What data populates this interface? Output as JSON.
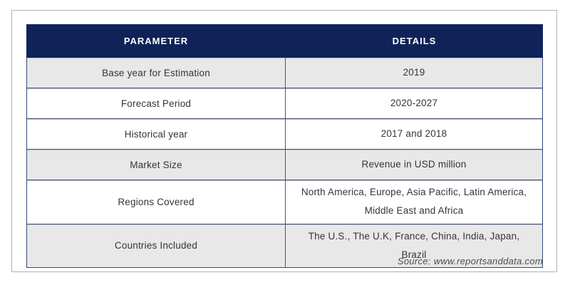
{
  "table": {
    "headers": {
      "parameter": "PARAMETER",
      "details": "DETAILS"
    },
    "rows": [
      {
        "parameter": "Base year for Estimation",
        "details": "2019"
      },
      {
        "parameter": "Forecast Period",
        "details": "2020-2027"
      },
      {
        "parameter": "Historical year",
        "details": "2017 and 2018"
      },
      {
        "parameter": "Market Size",
        "details": "Revenue in USD million"
      },
      {
        "parameter": "Regions Covered",
        "details": "North America, Europe, Asia Pacific, Latin America, Middle East and Africa"
      },
      {
        "parameter": "Countries Included",
        "details": "The U.S., The  U.K, France, China, India, Japan, Brazil"
      }
    ]
  },
  "source": {
    "label": "Source: www.reportsanddata.com"
  },
  "colors": {
    "header_bg": "#0f2358",
    "header_text": "#ffffff",
    "row_shaded_bg": "#e8e8e8",
    "row_plain_bg": "#ffffff",
    "table_border": "#33497a",
    "row_separator": "#454e63",
    "column_divider": "#41568a",
    "card_border": "#b2b2b2",
    "body_text": "#34343c",
    "source_text": "#4d4d4d"
  }
}
